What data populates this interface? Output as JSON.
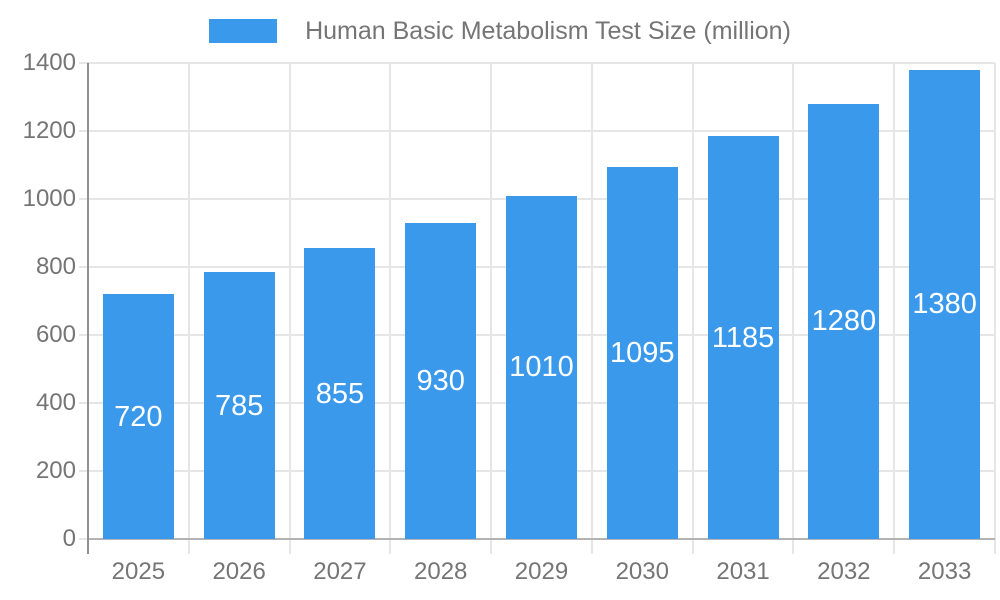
{
  "legend": {
    "position": "top"
  },
  "chart_data": {
    "type": "bar",
    "title": "Human Basic Metabolism Test Size (million)",
    "series_name": "Human Basic Metabolism Test Size (million)",
    "categories": [
      "2025",
      "2026",
      "2027",
      "2028",
      "2029",
      "2030",
      "2031",
      "2032",
      "2033"
    ],
    "values": [
      720,
      785,
      855,
      930,
      1010,
      1095,
      1185,
      1280,
      1380
    ],
    "xlabel": "",
    "ylabel": "",
    "ylim": [
      0,
      1400
    ],
    "yticks": [
      0,
      200,
      400,
      600,
      800,
      1000,
      1200,
      1400
    ],
    "grid": true,
    "legend_position": "top",
    "value_labels": "inside-center",
    "colors": {
      "bar": "#3b99ec",
      "value_label": "#ffffff",
      "axis_text": "#757575",
      "gridline": "#e6e6e6",
      "y_axis_line": "#909090",
      "x_axis_line": "#b3b3b3",
      "background": "#ffffff"
    }
  }
}
